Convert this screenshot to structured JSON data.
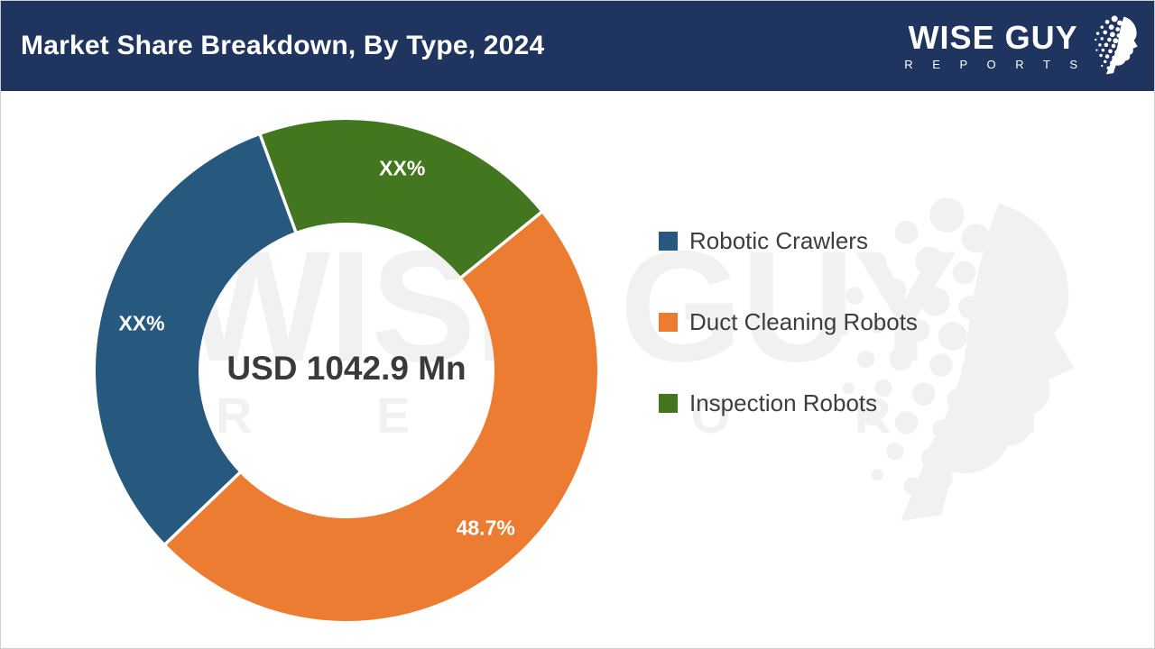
{
  "header": {
    "title": "Market Share Breakdown, By Type, 2024",
    "bg_color": "#1F3560",
    "logo": {
      "line1": "WISE GUY",
      "line2": "R E P O R T S",
      "face_icon": "dotted-face-profile"
    }
  },
  "watermark": {
    "line1": "WISE GUY",
    "line2": "R E P O R T S",
    "color": "#F1F1F1"
  },
  "chart_data": {
    "type": "donut",
    "title": "Market Share Breakdown, By Type, 2024",
    "center_label": "USD 1042.9 Mn",
    "units": "percent of market share",
    "legend_position": "right",
    "slices": [
      {
        "name": "Robotic Crawlers",
        "value_pct": 31.6,
        "label": "XX%",
        "color": "#27587E",
        "start_deg": 226.2
      },
      {
        "name": "Duct Cleaning Robots",
        "value_pct": 48.7,
        "label": "48.7%",
        "color": "#EC7C31",
        "start_deg": 50.9
      },
      {
        "name": "Inspection Robots",
        "value_pct": 19.7,
        "label": "XX%",
        "color": "#42761F",
        "start_deg": 339.9
      }
    ]
  }
}
